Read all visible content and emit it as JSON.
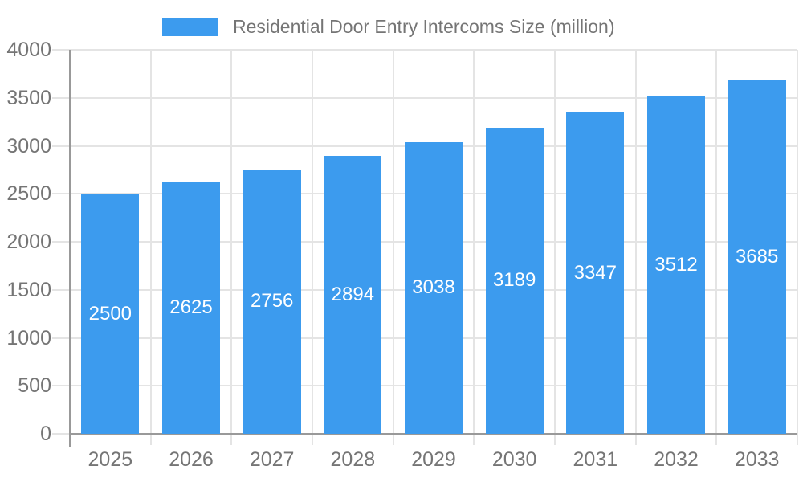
{
  "legend": {
    "items": [
      {
        "label": "Residential Door Entry Intercoms Size (million)",
        "color": "#3C9BEE"
      }
    ]
  },
  "chart_data": {
    "type": "bar",
    "title": "Residential Door Entry Intercoms Size (million)",
    "categories": [
      "2025",
      "2026",
      "2027",
      "2028",
      "2029",
      "2030",
      "2031",
      "2032",
      "2033"
    ],
    "series": [
      {
        "name": "Residential Door Entry Intercoms Size (million)",
        "color": "#3C9BEE",
        "values": [
          2500,
          2625,
          2756,
          2894,
          3038,
          3189,
          3347,
          3512,
          3685
        ]
      }
    ],
    "bar_value_labels": [
      "2500",
      "2625",
      "2756",
      "2894",
      "3038",
      "3189",
      "3347",
      "3512",
      "3685"
    ],
    "xlabel": "",
    "ylabel": "",
    "ylim": [
      0,
      4000
    ],
    "ytick_step": 500,
    "ytick_labels": [
      "0",
      "500",
      "1000",
      "1500",
      "2000",
      "2500",
      "3000",
      "3500",
      "4000"
    ],
    "grid": true,
    "legend_position": "top"
  },
  "colors": {
    "bar": "#3C9BEE",
    "bar_label_text": "#FFFFFF",
    "axis_text": "#757575",
    "gridline": "#E4E4E4",
    "axis_line": "#999999",
    "background": "#FFFFFF"
  }
}
